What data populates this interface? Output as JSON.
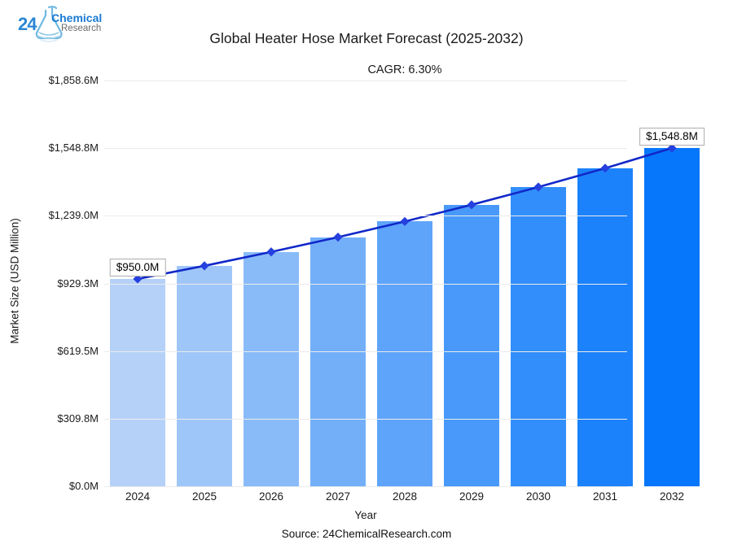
{
  "logo": {
    "number": "24",
    "line1": "Chemical",
    "line2": "Research",
    "flask_icon": "erlenmeyer-flask",
    "flask_color": "#6fb8e0"
  },
  "header": {
    "title": "Global Heater Hose Market Forecast (2025-2032)",
    "subtitle": "CAGR: 6.30%"
  },
  "chart_data": {
    "type": "bar",
    "title": "Global Heater Hose Market Forecast (2025-2032)",
    "subtitle": "CAGR: 6.30%",
    "categories": [
      "2024",
      "2025",
      "2026",
      "2027",
      "2028",
      "2029",
      "2030",
      "2031",
      "2032"
    ],
    "values": [
      950.0,
      1009.9,
      1073.5,
      1141.1,
      1213.0,
      1289.4,
      1370.6,
      1457.0,
      1548.8
    ],
    "line_overlay_values": [
      950.0,
      1009.9,
      1073.5,
      1141.1,
      1213.0,
      1289.4,
      1370.6,
      1457.0,
      1548.8
    ],
    "xlabel": "Year",
    "ylabel": "Market Size (USD Million)",
    "ylim": [
      0,
      1858.6
    ],
    "yticks": [
      {
        "value": 0,
        "label": "$0.0M"
      },
      {
        "value": 309.8,
        "label": "$309.8M"
      },
      {
        "value": 619.5,
        "label": "$619.5M"
      },
      {
        "value": 929.3,
        "label": "$929.3M"
      },
      {
        "value": 1239.0,
        "label": "$1,239.0M"
      },
      {
        "value": 1548.8,
        "label": "$1,548.8M"
      },
      {
        "value": 1858.6,
        "label": "$1,858.6M"
      }
    ],
    "annotations": [
      {
        "index": 0,
        "text": "$950.0M"
      },
      {
        "index": 8,
        "text": "$1,548.8M"
      }
    ],
    "grid": "horizontal",
    "legend": "none",
    "bar_colors": [
      "#b5d1f8",
      "#9fc6f8",
      "#89bbf9",
      "#73aff9",
      "#5ea4fa",
      "#4899fa",
      "#328efa",
      "#1c82fb",
      "#0677fb"
    ],
    "line_color": "#1128c9",
    "marker_color": "#2540de",
    "marker_shape": "diamond",
    "gridline_color": "#ebebeb"
  },
  "footer": {
    "source": "Source: 24ChemicalResearch.com"
  }
}
